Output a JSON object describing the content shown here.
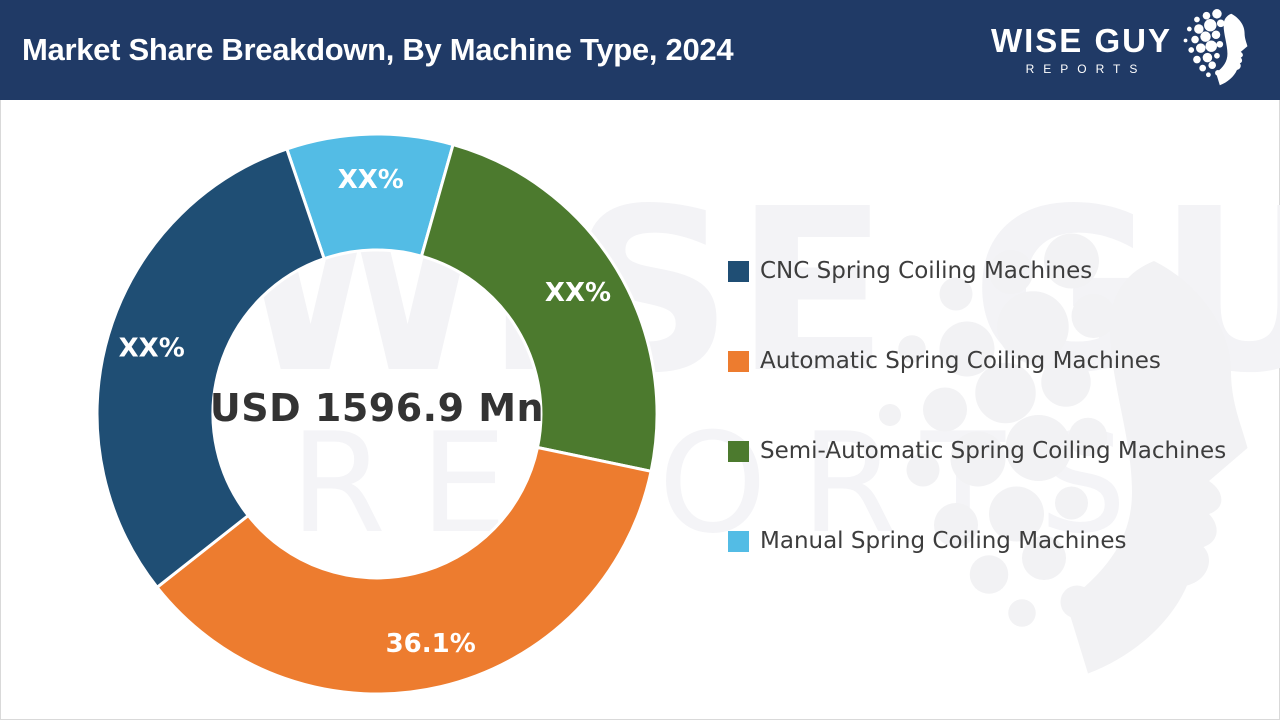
{
  "header": {
    "title": "Market Share Breakdown, By Machine Type, 2024",
    "logo": {
      "line1": "WISE GUY",
      "line2": "REPORTS"
    }
  },
  "watermark": {
    "line1": "WISE GUY",
    "line2": "REPORTS"
  },
  "chart_data": {
    "type": "pie",
    "style": "donut",
    "title": "Market Share Breakdown, By Machine Type, 2024",
    "center_label": "USD 1596.9 Mn",
    "legend_position": "right",
    "start_angle_deg": -18.8,
    "draw_order": [
      3,
      2,
      1,
      0
    ],
    "segments": [
      {
        "name": "CNC Spring Coiling Machines",
        "value_pct": 30.4,
        "displayed_label": "XX%",
        "color": "#1f4e74"
      },
      {
        "name": "Automatic Spring Coiling Machines",
        "value_pct": 36.1,
        "displayed_label": "36.1%",
        "color": "#ed7c2f"
      },
      {
        "name": "Semi-Automatic Spring Coiling Machines",
        "value_pct": 23.9,
        "displayed_label": "XX%",
        "color": "#4c7a2e"
      },
      {
        "name": "Manual Spring Coiling Machines",
        "value_pct": 9.6,
        "displayed_label": "XX%",
        "color": "#53bce5"
      }
    ]
  },
  "colors": {
    "header_bg": "#203a66",
    "watermark": "#f3f3f6",
    "border": "#d9d9d9",
    "text_dark": "#3d3d3d",
    "center_text": "#333333"
  }
}
